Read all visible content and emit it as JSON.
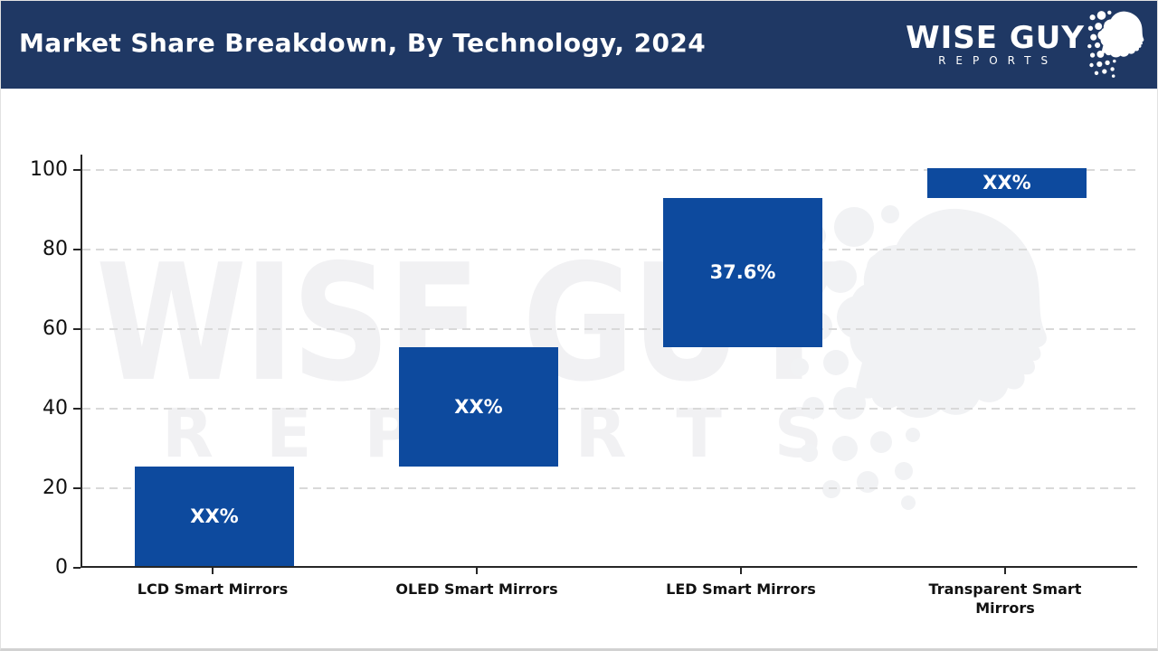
{
  "header": {
    "title": "Market Share Breakdown, By Technology, 2024",
    "logo": {
      "line1": "WISE GUY",
      "line2": "REPORTS"
    }
  },
  "watermark": {
    "line1": "WISE GUY",
    "line2": "REPORTS"
  },
  "colors": {
    "header_bg": "#1f3864",
    "bar": "#0d4a9e",
    "grid": "#d9d9d9",
    "axis": "#262626",
    "bar_label_text": "#ffffff",
    "tick_text": "#111111",
    "watermark": "#f1f2f4"
  },
  "chart_data": {
    "type": "bar",
    "subtype": "floating-segment-waterfall",
    "title": "Market Share Breakdown, By Technology, 2024",
    "xlabel": "",
    "ylabel": "",
    "ylim": [
      0,
      100
    ],
    "yticks": [
      0,
      20,
      40,
      60,
      80,
      100
    ],
    "grid": "dashed-horizontal",
    "legend": "none",
    "categories": [
      "LCD Smart Mirrors",
      "OLED Smart Mirrors",
      "LED Smart Mirrors",
      "Transparent Smart Mirrors"
    ],
    "segments": [
      {
        "category": "LCD Smart Mirrors",
        "start": 0,
        "end": 25,
        "size": 25,
        "label": "XX%"
      },
      {
        "category": "OLED Smart Mirrors",
        "start": 25,
        "end": 55,
        "size": 30,
        "label": "XX%"
      },
      {
        "category": "LED Smart Mirrors",
        "start": 55,
        "end": 92.6,
        "size": 37.6,
        "label": "37.6%"
      },
      {
        "category": "Transparent Smart Mirrors",
        "start": 92.6,
        "end": 100,
        "size": 7.4,
        "label": "XX%"
      }
    ]
  }
}
